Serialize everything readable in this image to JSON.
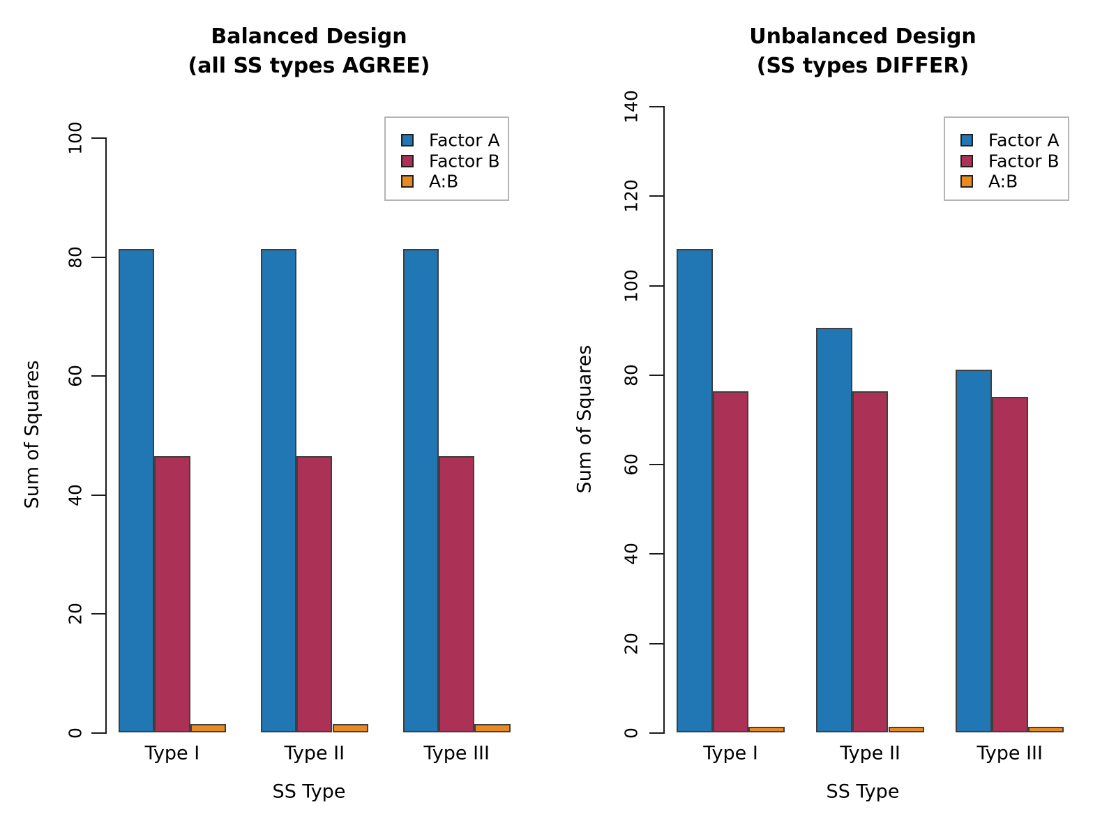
{
  "figure": {
    "background": "#ffffff",
    "colors": {
      "factor_a": "#2077b4",
      "factor_b": "#ab3157",
      "interaction": "#e88a20",
      "bar_border": "#3f3f3f",
      "axis": "#1a1a1a",
      "legend_border": "#b4b4b4",
      "text": "#000000"
    },
    "legend": {
      "position": "upper right",
      "items": [
        {
          "label": "Factor A",
          "color_key": "factor_a"
        },
        {
          "label": "Factor B",
          "color_key": "factor_b"
        },
        {
          "label": "A:B",
          "color_key": "interaction"
        }
      ]
    }
  },
  "chart_data": [
    {
      "type": "bar",
      "panel": "left",
      "title_line1": "Balanced Design",
      "title_line2": "(all SS types AGREE)",
      "xlabel": "SS Type",
      "ylabel": "Sum of Squares",
      "categories": [
        "Type I",
        "Type II",
        "Type III"
      ],
      "series": [
        {
          "name": "Factor A",
          "color_key": "factor_a",
          "values": [
            81.2,
            81.2,
            81.2
          ]
        },
        {
          "name": "Factor B",
          "color_key": "factor_b",
          "values": [
            46.4,
            46.4,
            46.4
          ]
        },
        {
          "name": "A:B",
          "color_key": "interaction",
          "values": [
            1.4,
            1.4,
            1.4
          ]
        }
      ],
      "ylim": [
        0,
        100
      ],
      "yticks": [
        0,
        20,
        40,
        60,
        80,
        100
      ],
      "grid": false,
      "legend_position": "upper right"
    },
    {
      "type": "bar",
      "panel": "right",
      "title_line1": "Unbalanced Design",
      "title_line2": "(SS types DIFFER)",
      "xlabel": "SS Type",
      "ylabel": "Sum of Squares",
      "categories": [
        "Type I",
        "Type II",
        "Type III"
      ],
      "series": [
        {
          "name": "Factor A",
          "color_key": "factor_a",
          "values": [
            108.0,
            90.5,
            81.0
          ]
        },
        {
          "name": "Factor B",
          "color_key": "factor_b",
          "values": [
            76.2,
            76.2,
            75.0
          ]
        },
        {
          "name": "A:B",
          "color_key": "interaction",
          "values": [
            1.2,
            1.2,
            1.2
          ]
        }
      ],
      "ylim": [
        0,
        140
      ],
      "yticks": [
        0,
        20,
        40,
        60,
        80,
        100,
        120,
        140
      ],
      "grid": false,
      "legend_position": "upper right"
    }
  ]
}
